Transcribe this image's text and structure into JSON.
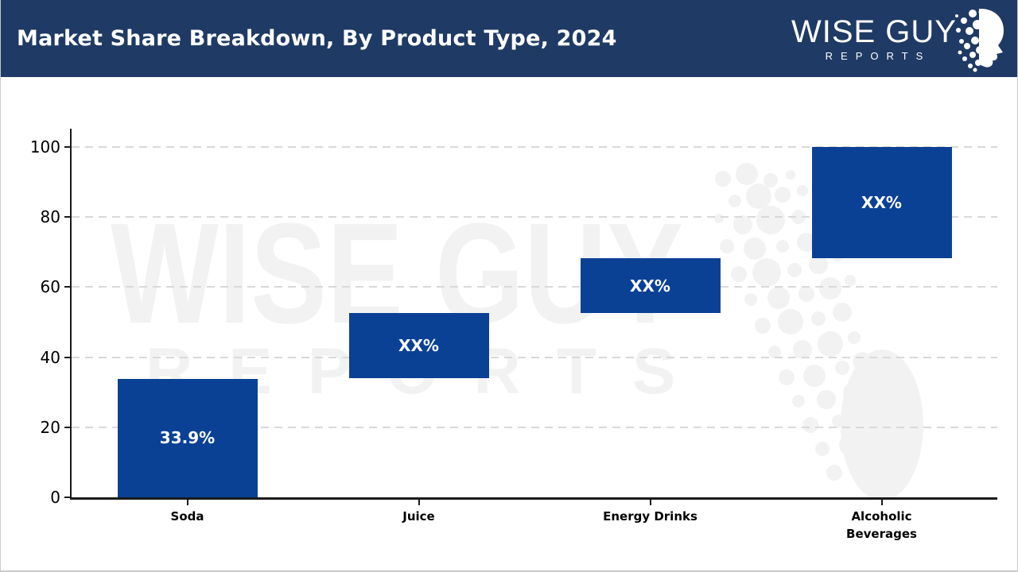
{
  "header": {
    "title": "Market Share Breakdown, By Product Type, 2024",
    "logo": {
      "line1": "WISE GUY",
      "line2": "REPORTS"
    }
  },
  "watermark": {
    "line1": "WISE GUY",
    "line2": "REPORTS"
  },
  "chart_data": {
    "type": "bar",
    "subtype": "waterfall",
    "title": "Market Share Breakdown, By Product Type, 2024",
    "categories": [
      "Soda",
      "Juice",
      "Energy Drinks",
      "Alcoholic Beverages"
    ],
    "series": [
      {
        "name": "Market Share",
        "segments": [
          {
            "category": "Soda",
            "start": 0,
            "end": 33.9,
            "label": "33.9%"
          },
          {
            "category": "Juice",
            "start": 33.9,
            "end": 52.6,
            "label": "XX%"
          },
          {
            "category": "Energy Drinks",
            "start": 52.6,
            "end": 68.2,
            "label": "XX%"
          },
          {
            "category": "Alcoholic Beverages",
            "start": 68.2,
            "end": 100,
            "label": "XX%"
          }
        ]
      }
    ],
    "ylim": [
      0,
      100
    ],
    "yticks": [
      0,
      20,
      40,
      60,
      80,
      100
    ],
    "grid": "dashed-horizontal",
    "legend": "none",
    "bar_color": "#0b4195",
    "label_color": "#ffffff"
  },
  "colors": {
    "header_bg": "#1f3a64",
    "bar": "#0b4195",
    "watermark": "#f2f2f2",
    "grid": "#d9d9d9",
    "axis": "#1a1a1a",
    "page_border": "#c9c9c9"
  }
}
